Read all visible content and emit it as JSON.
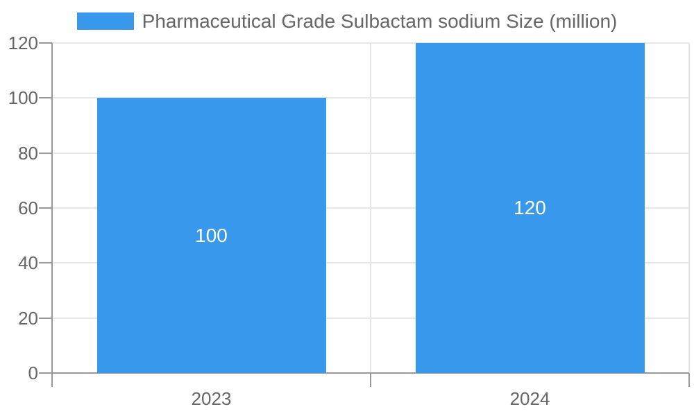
{
  "chart_data": {
    "type": "bar",
    "title": "Pharmaceutical Grade Sulbactam sodium Size (million)",
    "categories": [
      "2023",
      "2024"
    ],
    "series": [
      {
        "name": "Pharmaceutical Grade Sulbactam sodium Size (million)",
        "values": [
          100,
          120
        ]
      }
    ],
    "data_labels": [
      "100",
      "120"
    ],
    "xlabel": "",
    "ylabel": "",
    "ylim": [
      0,
      120
    ],
    "yticks": [
      0,
      20,
      40,
      60,
      80,
      100,
      120
    ],
    "grid": true,
    "legend_position": "top-center",
    "colors": {
      "bar": "#3899ec",
      "grid": "#e6e6e6",
      "axis": "#999999",
      "text": "#666666",
      "data_label": "#ffffff",
      "background": "#ffffff"
    }
  },
  "legend": {
    "label": "Pharmaceutical Grade Sulbactam sodium Size (million)"
  }
}
